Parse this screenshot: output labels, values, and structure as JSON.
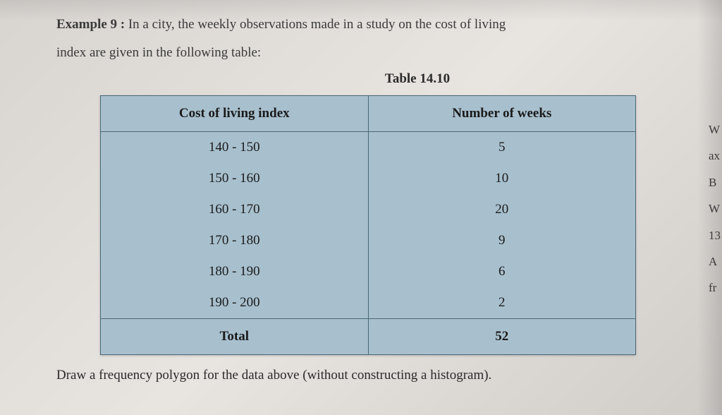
{
  "example": {
    "label": "Example 9 :",
    "text_line1": " In a city, the weekly observations made in a study on the cost of living",
    "text_line2": "index are given in the following table:"
  },
  "table": {
    "caption": "Table 14.10",
    "columns": [
      "Cost of living index",
      "Number of weeks"
    ],
    "rows": [
      [
        "140 - 150",
        "5"
      ],
      [
        "150 - 160",
        "10"
      ],
      [
        "160 - 170",
        "20"
      ],
      [
        "170 - 180",
        "9"
      ],
      [
        "180 - 190",
        "6"
      ],
      [
        "190 - 200",
        "2"
      ]
    ],
    "total_row": [
      "Total",
      "52"
    ],
    "header_bg": "#a8c0ce",
    "cell_bg": "#a8c0ce",
    "border_color": "#4a6878",
    "text_color": "#1a1a1a"
  },
  "bottom_text": "Draw a frequency polygon for the data above (without constructing a histogram).",
  "margin_letters": [
    "W",
    "ax",
    "B",
    "W",
    "13",
    "A",
    "fr"
  ]
}
